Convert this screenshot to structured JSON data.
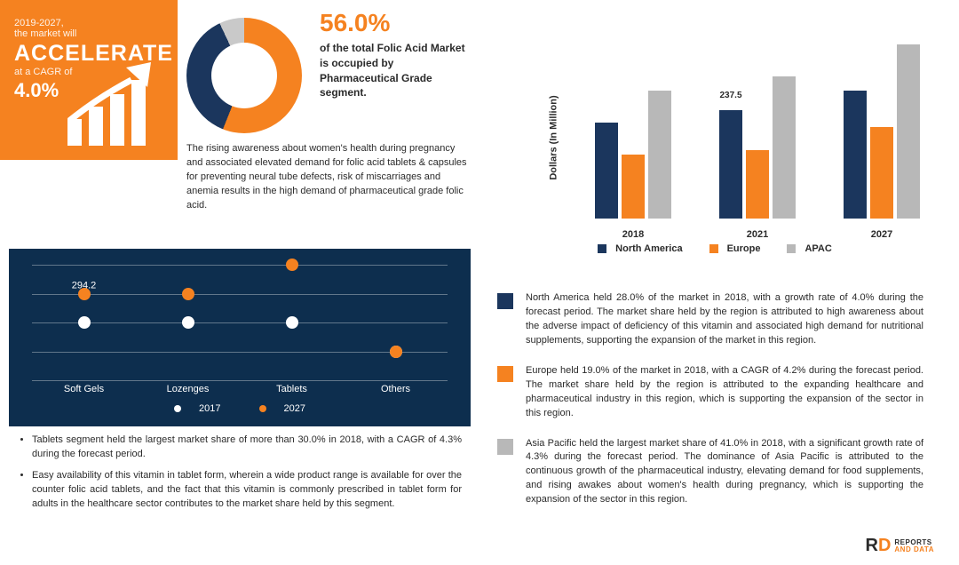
{
  "colors": {
    "orange": "#f58220",
    "navy": "#1b365d",
    "darknavy": "#0d2e4e",
    "grey": "#b8b8b8",
    "white": "#ffffff"
  },
  "accelerate": {
    "line1": "2019-2027,",
    "line2": "the market will",
    "word": "ACCELERATE",
    "line3": "at a CAGR of",
    "rate": "4.0%"
  },
  "donut": {
    "headline": "56.0%",
    "headline_color": "#f58220",
    "sub": "of the total Folic Acid Market is occupied by Pharmaceutical Grade segment.",
    "slices": [
      {
        "color": "#f58220",
        "pct": 56
      },
      {
        "color": "#1b365d",
        "pct": 37
      },
      {
        "color": "#c9c9c9",
        "pct": 7
      }
    ],
    "para": "The rising awareness about women's health during pregnancy and associated elevated demand for folic acid tablets & capsules for preventing neural tube defects, risk of miscarriages and anemia results in the high demand of pharmaceutical grade folic acid."
  },
  "dotchart": {
    "categories": [
      "Soft Gels",
      "Lozenges",
      "Tablets",
      "Others"
    ],
    "series": [
      {
        "name": "2017",
        "color": "#ffffff",
        "y": [
          2,
          2,
          2,
          1
        ]
      },
      {
        "name": "2027",
        "color": "#f58220",
        "y": [
          3,
          3,
          4,
          1
        ]
      }
    ],
    "rows": 5,
    "value_label": {
      "text": "294.2",
      "cat": 0,
      "row": 3
    },
    "legend_2017": "2017",
    "legend_2027": "2027"
  },
  "bullets": [
    "Tablets segment held the largest market share of more than 30.0% in 2018, with a CAGR of 4.3% during the forecast period.",
    "Easy availability of this vitamin in tablet form, wherein a wide product range is available for over the counter folic acid tablets, and the fact that this vitamin is commonly prescribed in tablet form for adults in the healthcare sector contributes to the market share held by this segment."
  ],
  "barchart": {
    "ylabel": "Dollars (In Million)",
    "ylim": [
      0,
      400
    ],
    "groups": [
      "2018",
      "2021",
      "2027"
    ],
    "series": [
      {
        "name": "North America",
        "color": "#1b365d",
        "values": [
          210,
          237.5,
          280
        ]
      },
      {
        "name": "Europe",
        "color": "#f58220",
        "values": [
          140,
          150,
          200
        ]
      },
      {
        "name": "APAC",
        "color": "#b8b8b8",
        "values": [
          280,
          310,
          380
        ]
      }
    ],
    "value_labels": [
      {
        "group": 1,
        "series": 0,
        "text": "237.5"
      }
    ]
  },
  "insights": [
    {
      "color": "#1b365d",
      "text": "North America held 28.0% of the market in 2018, with a growth rate of 4.0% during the forecast period. The market share held by the region is attributed to high awareness about the adverse impact of deficiency of this vitamin and associated high demand for nutritional supplements, supporting the expansion of the market in this region."
    },
    {
      "color": "#f58220",
      "text": "Europe held 19.0% of the market in 2018, with a CAGR of 4.2% during the forecast period. The market share held by the region is attributed to the expanding healthcare and pharmaceutical industry in this region, which is supporting the expansion of the sector in this region."
    },
    {
      "color": "#b8b8b8",
      "text": "Asia Pacific held the largest market share of 41.0% in 2018, with a significant growth rate of 4.3% during the forecast period. The dominance of Asia Pacific is attributed to the continuous growth of the pharmaceutical industry, elevating demand for food supplements, and rising awakes about women's health during pregnancy, which is supporting the expansion of the sector in this region."
    }
  ],
  "logo": {
    "r": "R",
    "d": "D",
    "line1": "REPORTS",
    "line2": "AND DATA"
  }
}
